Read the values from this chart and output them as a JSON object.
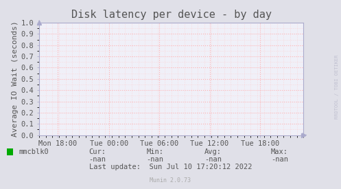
{
  "title": "Disk latency per device - by day",
  "ylabel": "Average IO Wait (seconds)",
  "fig_bg_color": "#e0e0e8",
  "plot_bg_color": "#f0f0f8",
  "grid_color": "#ffb0b0",
  "grid_minor_color": "#ffc8c8",
  "yticks": [
    0.0,
    0.1,
    0.2,
    0.3,
    0.4,
    0.5,
    0.6,
    0.7,
    0.8,
    0.9,
    1.0
  ],
  "ylim": [
    0.0,
    1.0
  ],
  "xtick_labels": [
    "Mon 18:00",
    "Tue 00:00",
    "Tue 06:00",
    "Tue 12:00",
    "Tue 18:00"
  ],
  "xtick_positions": [
    0.07,
    0.265,
    0.455,
    0.645,
    0.835
  ],
  "legend_label": "mmcblk0",
  "legend_color": "#00aa00",
  "cur_label": "Cur:",
  "cur_val": "-nan",
  "min_label": "Min:",
  "min_val": "-nan",
  "avg_label": "Avg:",
  "avg_val": "-nan",
  "max_label": "Max:",
  "max_val": "-nan",
  "last_update": "Last update:  Sun Jul 10 17:20:12 2022",
  "munin_version": "Munin 2.0.73",
  "watermark": "RRDTOOL / TOBI OETIKER",
  "title_fontsize": 11,
  "axis_label_fontsize": 8,
  "tick_fontsize": 7.5,
  "legend_fontsize": 7.5,
  "footer_fontsize": 7.5,
  "spine_color": "#aaaacc",
  "tick_color": "#555555",
  "text_color": "#555555",
  "watermark_color": "#c0c0d0"
}
